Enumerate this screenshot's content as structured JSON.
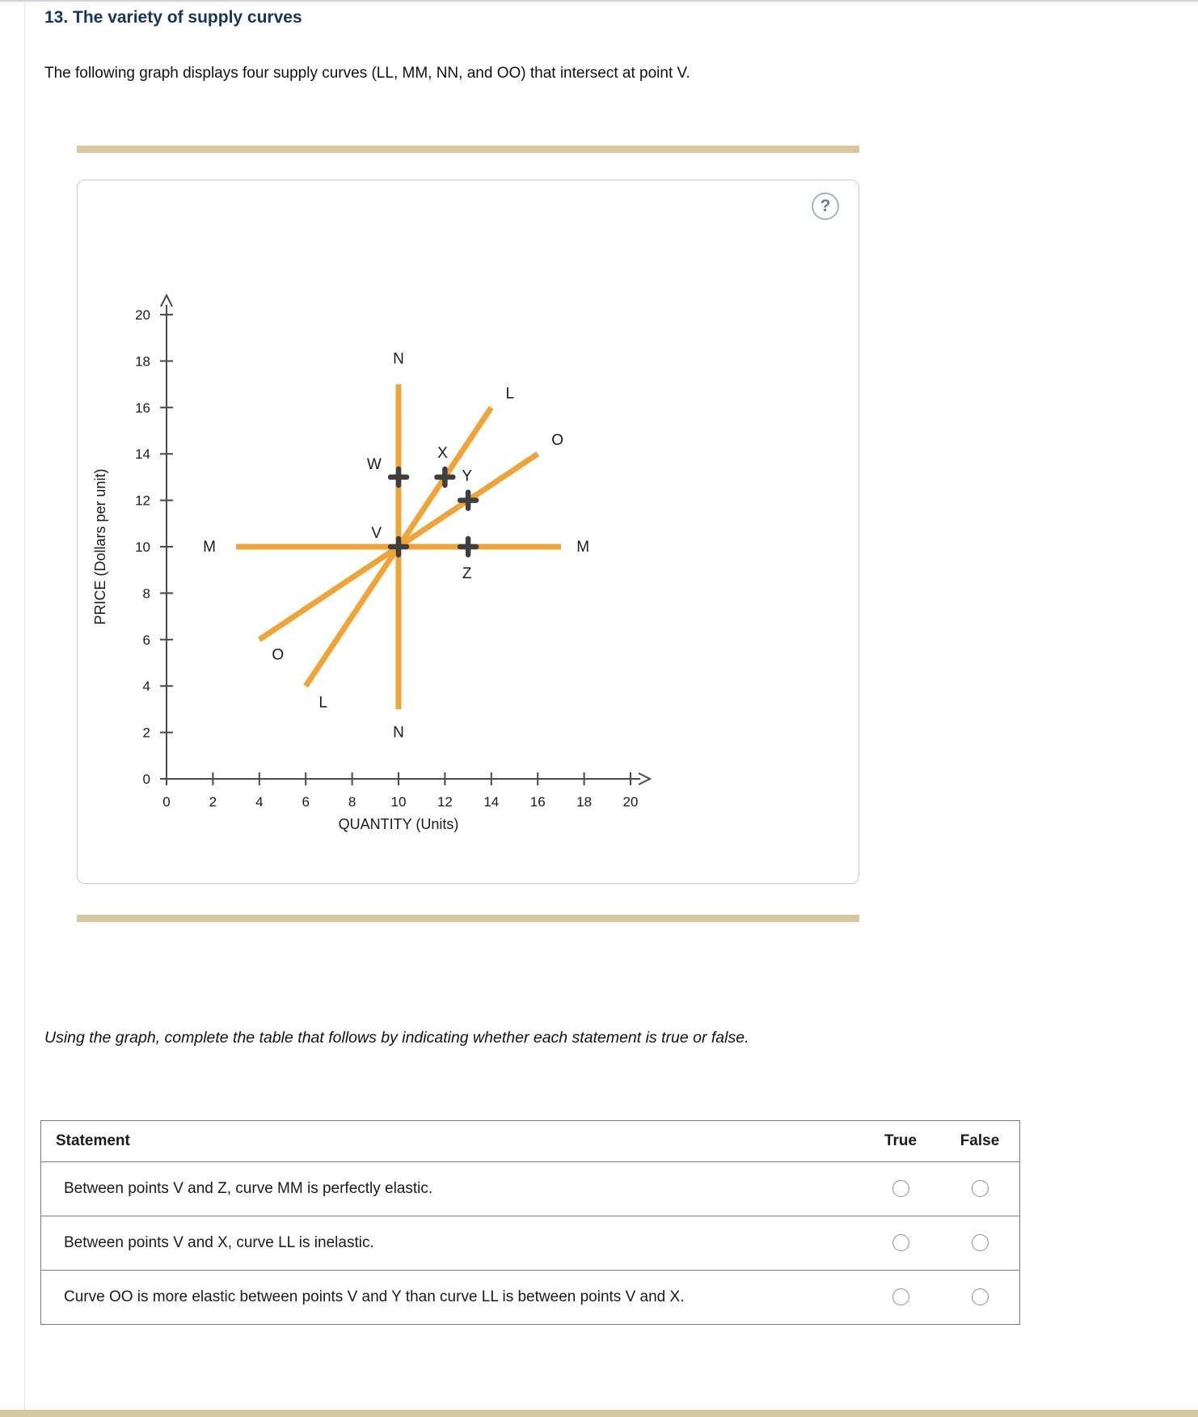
{
  "page": {
    "section_title": "13. The variety of supply curves",
    "intro": "The following graph displays four supply curves (LL, MM, NN, and OO) that intersect at point V.",
    "instruction": "Using the graph, complete the table that follows by indicating whether each statement is true or false.",
    "help_icon": "?"
  },
  "chart_data": {
    "type": "line",
    "title": "",
    "xlabel": "QUANTITY (Units)",
    "ylabel": "PRICE (Dollars per unit)",
    "xlim": [
      0,
      20
    ],
    "ylim": [
      0,
      20
    ],
    "xticks": [
      0,
      2,
      4,
      6,
      8,
      10,
      12,
      14,
      16,
      18,
      20
    ],
    "yticks": [
      0,
      2,
      4,
      6,
      8,
      10,
      12,
      14,
      16,
      18,
      20
    ],
    "grid": false,
    "curve_color": "#f0a437",
    "marker_color": "#3f3f3f",
    "series": [
      {
        "name": "NN",
        "points": [
          [
            10,
            3
          ],
          [
            10,
            17
          ]
        ]
      },
      {
        "name": "MM",
        "points": [
          [
            3,
            10
          ],
          [
            17,
            10
          ]
        ]
      },
      {
        "name": "LL",
        "points": [
          [
            6,
            4
          ],
          [
            14,
            16
          ]
        ]
      },
      {
        "name": "OO",
        "points": [
          [
            4,
            6
          ],
          [
            16,
            14
          ]
        ]
      }
    ],
    "curve_labels": [
      {
        "text": "N",
        "x": 10,
        "y": 18.1
      },
      {
        "text": "N",
        "x": 10,
        "y": 2.0
      },
      {
        "text": "M",
        "x": 1.85,
        "y": 10
      },
      {
        "text": "M",
        "x": 17.95,
        "y": 10
      },
      {
        "text": "L",
        "x": 14.8,
        "y": 16.6
      },
      {
        "text": "L",
        "x": 6.75,
        "y": 3.3
      },
      {
        "text": "O",
        "x": 16.85,
        "y": 14.6
      },
      {
        "text": "O",
        "x": 4.8,
        "y": 5.35
      }
    ],
    "points": [
      {
        "label": "W",
        "x": 10,
        "y": 13,
        "label_x": 8.95,
        "label_y": 13.55
      },
      {
        "label": "X",
        "x": 12,
        "y": 13,
        "label_x": 11.9,
        "label_y": 14.05
      },
      {
        "label": "Y",
        "x": 13,
        "y": 12,
        "label_x": 12.95,
        "label_y": 13.05
      },
      {
        "label": "V",
        "x": 10,
        "y": 10,
        "label_x": 9.05,
        "label_y": 10.6
      },
      {
        "label": "Z",
        "x": 13,
        "y": 10,
        "label_x": 12.95,
        "label_y": 8.85
      }
    ]
  },
  "table": {
    "header": {
      "statement": "Statement",
      "true": "True",
      "false": "False"
    },
    "rows": [
      {
        "statement": "Between points V and Z, curve MM is perfectly elastic."
      },
      {
        "statement": "Between points V and X, curve LL is inelastic."
      },
      {
        "statement": "Curve OO is more elastic between points V and Y than curve LL is between points V and X."
      }
    ]
  },
  "colors": {
    "title": "#17365d",
    "divider": "#d8c8a0",
    "curve": "#f0a437",
    "marker": "#3f3f3f",
    "axis": "#4a4a4a"
  }
}
